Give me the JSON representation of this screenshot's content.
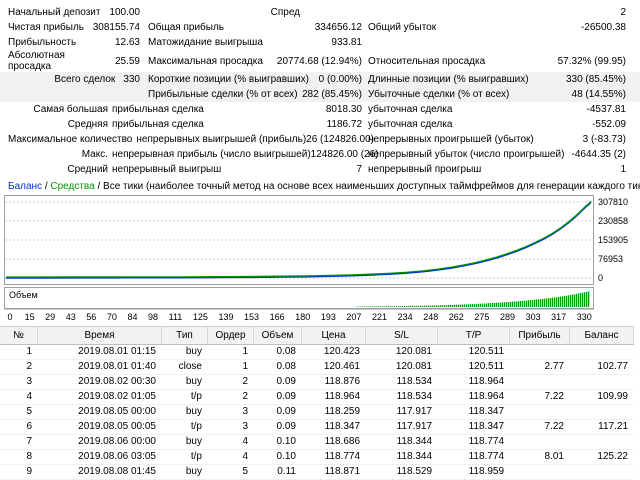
{
  "stats": {
    "rows": [
      {
        "c1": "Начальный депозит",
        "c1v": "100.00",
        "l2": "",
        "v2": "Спред",
        "l3": "",
        "v3": "2"
      },
      {
        "c1": "Чистая прибыль",
        "c1v": "308155.74",
        "l2": "Общая прибыль",
        "v2": "334656.12",
        "l3": "Общий убыток",
        "v3": "-26500.38"
      },
      {
        "c1": "Прибыльность",
        "c1v": "12.63",
        "l2": "Матожидание выигрыша",
        "v2": "933.81",
        "l3": "",
        "v3": ""
      },
      {
        "c1": "Абсолютная просадка",
        "c1v": "25.59",
        "l2": "Максимальная просадка",
        "v2": "20774.68 (12.94%)",
        "l3": "Относительная просадка",
        "v3": "57.32% (99.95)"
      },
      {
        "c1": "Всего сделок",
        "c1v": "330",
        "l2": "Короткие позиции (% выигравших)",
        "v2": "0 (0.00%)",
        "l3": "Длинные позиции (% выигравших)",
        "v3": "330 (85.45%)"
      },
      {
        "c1": "",
        "c1v": "",
        "l2": "Прибыльные сделки (% от всех)",
        "v2": "282 (85.45%)",
        "l3": "Убыточные сделки (% от всех)",
        "v3": "48 (14.55%)"
      },
      {
        "p": "Самая большая",
        "l2": "прибыльная сделка",
        "v2": "8018.30",
        "l3": "убыточная сделка",
        "v3": "-4537.81"
      },
      {
        "p": "Средняя",
        "l2": "прибыльная сделка",
        "v2": "1186.72",
        "l3": "убыточная сделка",
        "v3": "-552.09"
      },
      {
        "p": "Максимальное количество",
        "l2": "непрерывных выигрышей (прибыль)",
        "v2": "26 (124826.00)",
        "l3": "непрерывных проигрышей (убыток)",
        "v3": "3 (-83.73)"
      },
      {
        "p": "Макс.",
        "l2": "непрерывная прибыль (число выигрышей)",
        "v2": "124826.00 (26)",
        "l3": "непрерывный убыток (число проигрышей)",
        "v3": "-4644.35 (2)"
      },
      {
        "p": "Средний",
        "l2": "непрерывный выигрыш",
        "v2": "7",
        "l3": "непрерывный проигрыш",
        "v3": "1"
      }
    ]
  },
  "chart_data": {
    "type": "line",
    "title_parts": [
      {
        "text": "Баланс",
        "color": "#0032c8"
      },
      {
        "text": " / ",
        "color": "#000000"
      },
      {
        "text": "Средства",
        "color": "#009600"
      },
      {
        "text": " / Все тики (наиболее точный метод на основе всех наименьших доступных таймфреймов для генерации каждого тика) / 90.00%",
        "color": "#000000"
      }
    ],
    "series": [
      {
        "name": "Баланс",
        "color": "#0032c8"
      },
      {
        "name": "Средства",
        "color": "#009600"
      }
    ],
    "balance_points": [
      [
        0,
        100
      ],
      [
        20,
        160
      ],
      [
        40,
        260
      ],
      [
        60,
        420
      ],
      [
        80,
        650
      ],
      [
        100,
        1000
      ],
      [
        120,
        1600
      ],
      [
        140,
        2500
      ],
      [
        155,
        3500
      ],
      [
        170,
        5000
      ],
      [
        183,
        6800
      ],
      [
        195,
        9000
      ],
      [
        207,
        12000
      ],
      [
        217,
        15500
      ],
      [
        226,
        19500
      ],
      [
        235,
        25000
      ],
      [
        243,
        31500
      ],
      [
        251,
        39500
      ],
      [
        258,
        48500
      ],
      [
        265,
        59000
      ],
      [
        271,
        69500
      ],
      [
        277,
        81500
      ],
      [
        283,
        95000
      ],
      [
        288,
        108000
      ],
      [
        293,
        122500
      ],
      [
        298,
        138500
      ],
      [
        303,
        156000
      ],
      [
        308,
        176000
      ],
      [
        313,
        200000
      ],
      [
        317,
        222000
      ],
      [
        321,
        246000
      ],
      [
        324,
        266000
      ],
      [
        327,
        287000
      ],
      [
        329,
        299000
      ],
      [
        330,
        307810
      ]
    ],
    "ylim": [
      0,
      307810
    ],
    "y_ticks": [
      "307810",
      "230858",
      "153905",
      "76953",
      "0"
    ],
    "x_ticks": [
      "0",
      "15",
      "29",
      "43",
      "56",
      "70",
      "84",
      "98",
      "111",
      "125",
      "139",
      "153",
      "166",
      "180",
      "193",
      "207",
      "221",
      "234",
      "248",
      "262",
      "275",
      "289",
      "303",
      "317",
      "330"
    ],
    "grid": "dashed-horizontal",
    "volume_label": "Объем",
    "volume_color": "#00a000"
  },
  "trades": {
    "columns": [
      "№",
      "Время",
      "Тип",
      "Ордер",
      "Объем",
      "Цена",
      "S/L",
      "T/P",
      "Прибыль",
      "Баланс"
    ],
    "rows": [
      [
        "1",
        "2019.08.01 01:15",
        "buy",
        "1",
        "0.08",
        "120.423",
        "120.081",
        "120.511",
        "",
        ""
      ],
      [
        "2",
        "2019.08.01 01:40",
        "close",
        "1",
        "0.08",
        "120.461",
        "120.081",
        "120.511",
        "2.77",
        "102.77"
      ],
      [
        "3",
        "2019.08.02 00:30",
        "buy",
        "2",
        "0.09",
        "118.876",
        "118.534",
        "118.964",
        "",
        ""
      ],
      [
        "4",
        "2019.08.02 01:05",
        "t/p",
        "2",
        "0.09",
        "118.964",
        "118.534",
        "118.964",
        "7.22",
        "109.99"
      ],
      [
        "5",
        "2019.08.05 00:00",
        "buy",
        "3",
        "0.09",
        "118.259",
        "117.917",
        "118.347",
        "",
        ""
      ],
      [
        "6",
        "2019.08.05 00:05",
        "t/p",
        "3",
        "0.09",
        "118.347",
        "117.917",
        "118.347",
        "7.22",
        "117.21"
      ],
      [
        "7",
        "2019.08.06 00:00",
        "buy",
        "4",
        "0.10",
        "118.686",
        "118.344",
        "118.774",
        "",
        ""
      ],
      [
        "8",
        "2019.08.06 03:05",
        "t/p",
        "4",
        "0.10",
        "118.774",
        "118.344",
        "118.774",
        "8.01",
        "125.22"
      ],
      [
        "9",
        "2019.08.08 01:45",
        "buy",
        "5",
        "0.11",
        "118.871",
        "118.529",
        "118.959",
        "",
        ""
      ]
    ]
  }
}
